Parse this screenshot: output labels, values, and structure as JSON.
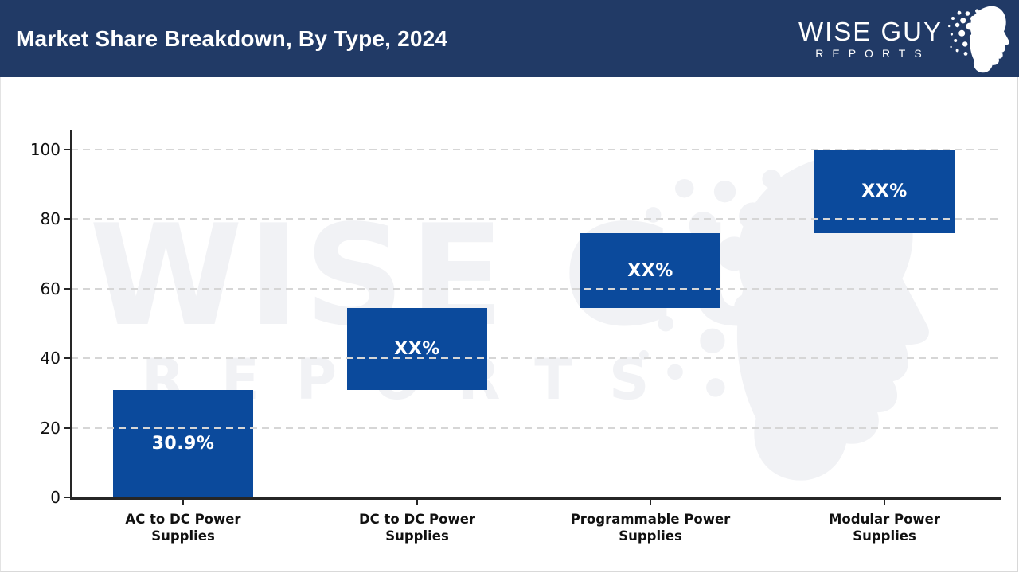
{
  "header": {
    "title": "Market Share Breakdown, By Type, 2024",
    "logo": {
      "line1": "WISE GUY",
      "line2": "REPORTS"
    }
  },
  "watermark": {
    "line1": "WISE GUY",
    "line2": "REPORTS"
  },
  "colors": {
    "header_bg": "#213a66",
    "bar": "#0b4a9c",
    "grid": "#d6d6d6",
    "axis": "#262626",
    "tick_text": "#111111",
    "value_label": "#ffffff",
    "watermark": "#f1f2f5"
  },
  "chart_data": {
    "type": "bar",
    "subtype": "waterfall",
    "title": "Market Share Breakdown, By Type, 2024",
    "categories": [
      "AC to DC Power Supplies",
      "DC to DC Power Supplies",
      "Programmable Power Supplies",
      "Modular Power Supplies"
    ],
    "segments": [
      {
        "category": "AC to DC Power Supplies",
        "start": 0,
        "end": 30.9,
        "label": "30.9%"
      },
      {
        "category": "DC to DC Power Supplies",
        "start": 30.9,
        "end": 54.3,
        "label": "XX%"
      },
      {
        "category": "Programmable Power Supplies",
        "start": 54.3,
        "end": 75.8,
        "label": "XX%"
      },
      {
        "category": "Modular Power Supplies",
        "start": 75.8,
        "end": 100,
        "label": "XX%"
      }
    ],
    "yticks": [
      0,
      20,
      40,
      60,
      80,
      100
    ],
    "ylim": [
      0,
      105.7
    ],
    "xlabel": "",
    "ylabel": "",
    "grid": "horizontal-dashed",
    "legend": "none",
    "note": "Values other than first bar are masked as XX% in source image"
  }
}
